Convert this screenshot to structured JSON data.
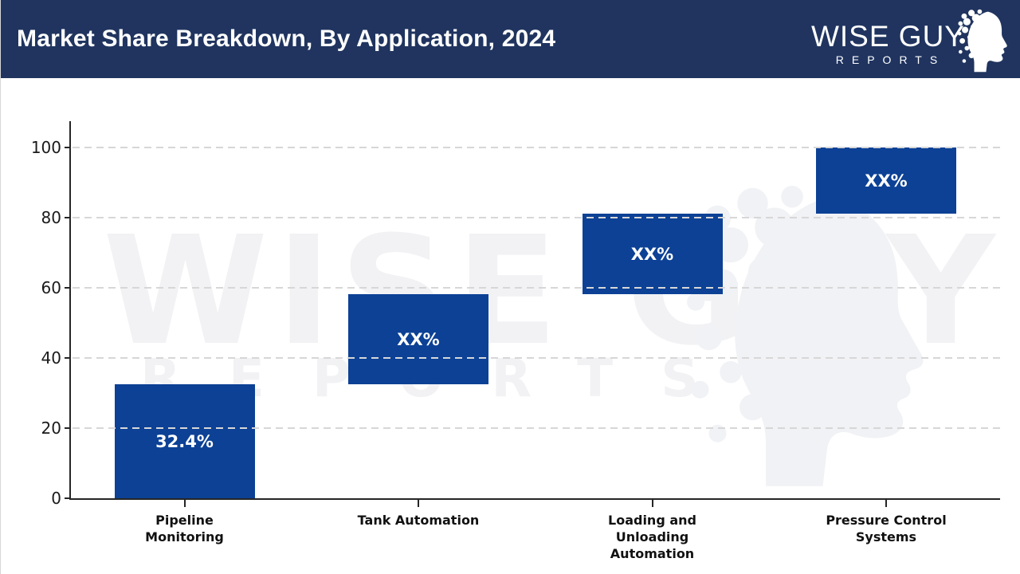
{
  "header": {
    "title": "Market Share Breakdown, By Application, 2024",
    "bg_color": "#20345f",
    "logo": {
      "line1": "WISE GUY",
      "line2": "REPORTS"
    }
  },
  "watermark": {
    "line1": "WISE GUY",
    "line2": "REPORTS"
  },
  "chart_data": {
    "type": "bar",
    "subtype": "waterfall",
    "title": "Market Share Breakdown, By Application, 2024",
    "categories": [
      "Pipeline Monitoring",
      "Tank Automation",
      "Loading and Unloading Automation",
      "Pressure Control Systems"
    ],
    "category_label_lines": [
      "Pipeline\nMonitoring",
      "Tank Automation",
      "Loading and\nUnloading\nAutomation",
      "Pressure Control\nSystems"
    ],
    "segments": [
      {
        "category": "Pipeline Monitoring",
        "start": 0,
        "end": 32.4,
        "label": "32.4%"
      },
      {
        "category": "Tank Automation",
        "start": 32.4,
        "end": 58.2,
        "label": "XX%"
      },
      {
        "category": "Loading and Unloading Automation",
        "start": 58.2,
        "end": 81.1,
        "label": "XX%"
      },
      {
        "category": "Pressure Control Systems",
        "start": 81.1,
        "end": 100,
        "label": "XX%"
      }
    ],
    "y_ticks": [
      0,
      20,
      40,
      60,
      80,
      100
    ],
    "ylim": [
      0,
      107
    ],
    "xlabel": "",
    "ylabel": "",
    "grid": "horizontal-dashed",
    "legend": "none",
    "bar_color": "#0c4195",
    "bar_label_color": "#ffffff",
    "gridline_color": "#d7d7d7",
    "axis_color": "#262626"
  }
}
